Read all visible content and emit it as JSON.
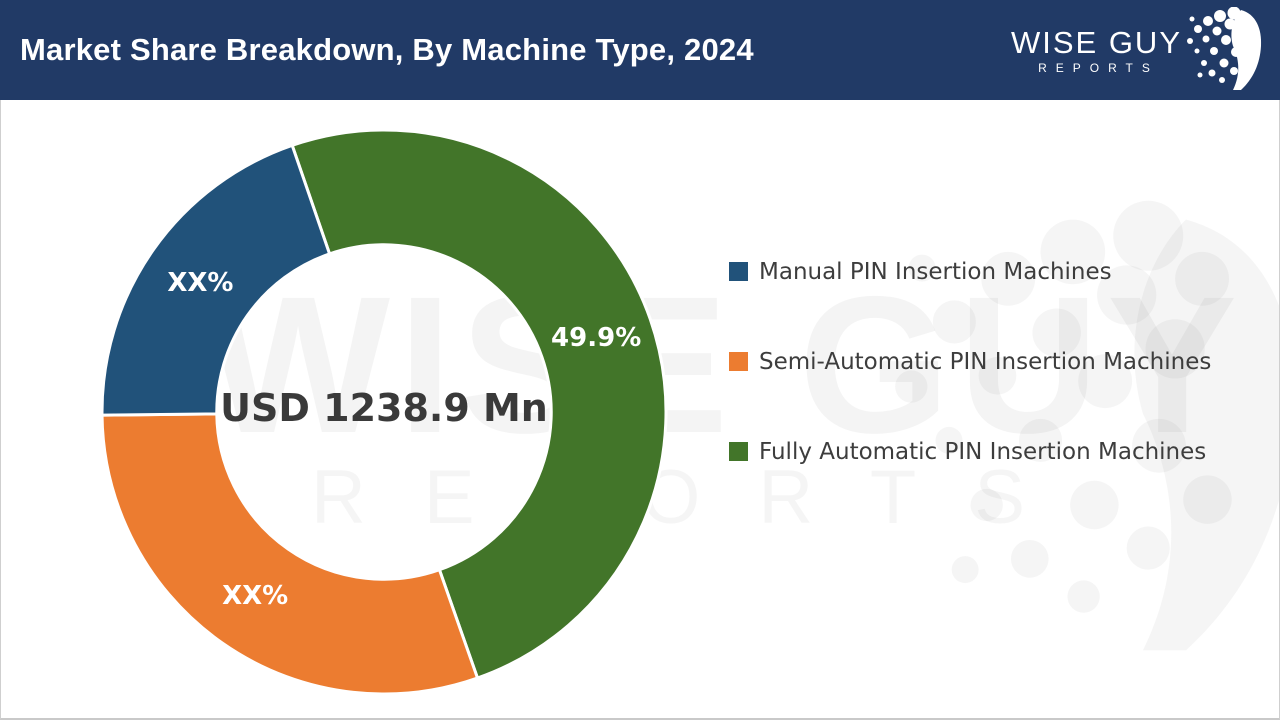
{
  "header": {
    "title": "Market Share Breakdown, By Machine Type, 2024",
    "bg_color": "#213a66",
    "logo": {
      "wordmark": "WISE GUY",
      "subtitle": "REPORTS"
    }
  },
  "watermark": {
    "line1": "WISE GUY",
    "line2": "REPORTS"
  },
  "chart_data": {
    "type": "pie",
    "subtype": "donut",
    "title": "Market Share Breakdown, By Machine Type, 2024",
    "center_label": "USD 1238.9 Mn",
    "units": "percent of market share",
    "start_angle_deg_clockwise_from_top": -19,
    "inner_radius_ratio": 0.593,
    "legend_position": "right",
    "gap_color": "#ffffff",
    "segments": [
      {
        "name": "Manual PIN Insertion Machines",
        "label": "XX%",
        "value": 19.9,
        "color": "#21527a"
      },
      {
        "name": "Semi-Automatic PIN Insertion Machines",
        "label": "XX%",
        "value": 30.2,
        "color": "#ec7c30"
      },
      {
        "name": "Fully Automatic PIN Insertion Machines",
        "label": "49.9%",
        "value": 49.9,
        "color": "#427529"
      }
    ]
  }
}
